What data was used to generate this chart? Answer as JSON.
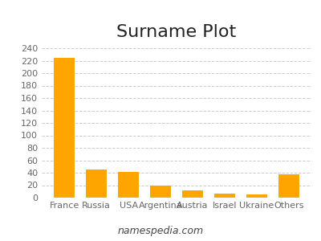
{
  "title": "Surname Plot",
  "categories": [
    "France",
    "Russia",
    "USA",
    "Argentina",
    "Austria",
    "Israel",
    "Ukraine",
    "Others"
  ],
  "values": [
    225,
    45,
    41,
    20,
    11,
    7,
    5,
    38
  ],
  "bar_color": "#FFA500",
  "background_color": "#ffffff",
  "ylim_max": 240,
  "yticks": [
    0,
    20,
    40,
    60,
    80,
    100,
    120,
    140,
    160,
    180,
    200,
    220,
    240
  ],
  "grid_color": "#cccccc",
  "title_fontsize": 16,
  "xtick_fontsize": 8,
  "ytick_fontsize": 8,
  "watermark": "namespedia.com",
  "watermark_fontsize": 9
}
